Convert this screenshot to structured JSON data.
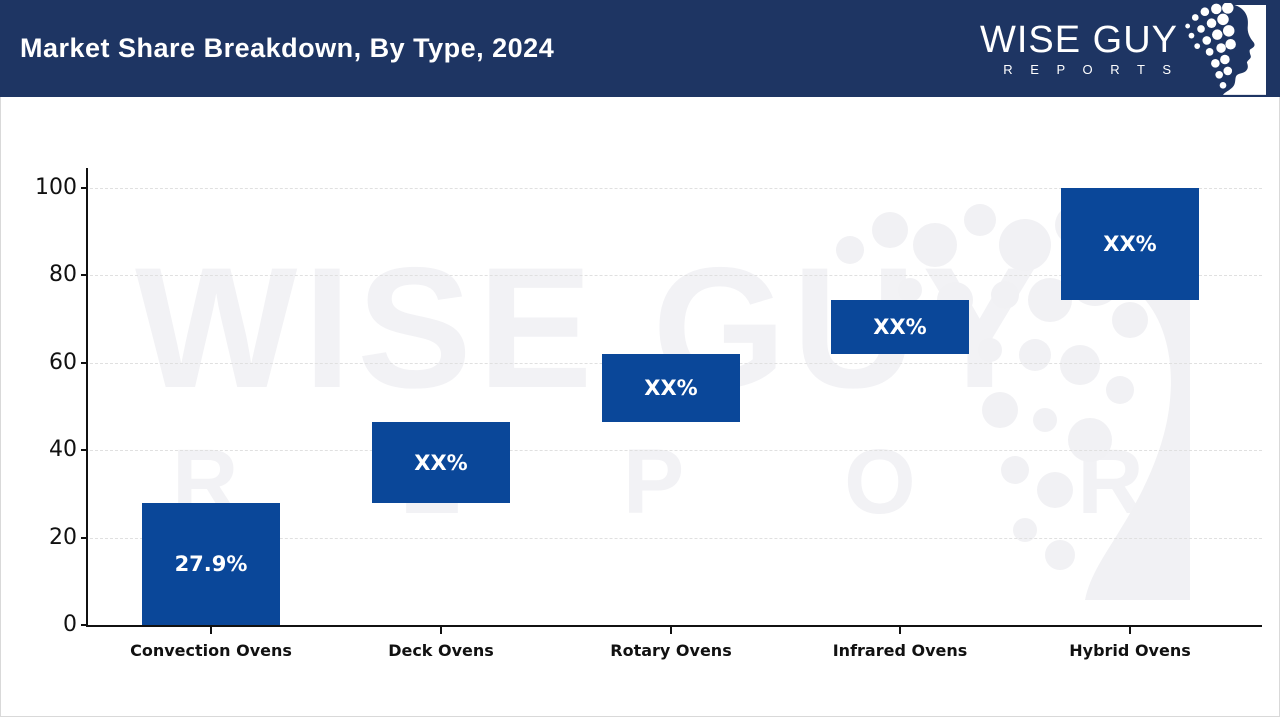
{
  "header": {
    "title": "Market Share Breakdown, By Type, 2024",
    "bg_color": "#1e3563",
    "logo": {
      "line1": "WISE GUY",
      "line2": "R E P O R T S"
    }
  },
  "watermark": {
    "line1": "WISE GUY",
    "line2": "R E P O R T S"
  },
  "chart_data": {
    "type": "bar",
    "subtype": "waterfall-floating-bars",
    "title": "Market Share Breakdown, By Type, 2024",
    "categories": [
      "Convection Ovens",
      "Deck Ovens",
      "Rotary Ovens",
      "Infrared Ovens",
      "Hybrid Ovens"
    ],
    "segments": [
      {
        "category": "Convection Ovens",
        "start": 0,
        "end": 27.9,
        "label": "27.9%"
      },
      {
        "category": "Deck Ovens",
        "start": 27.9,
        "end": 46.3,
        "label": "XX%"
      },
      {
        "category": "Rotary Ovens",
        "start": 46.3,
        "end": 61.9,
        "label": "XX%"
      },
      {
        "category": "Infrared Ovens",
        "start": 61.9,
        "end": 74.4,
        "label": "XX%"
      },
      {
        "category": "Hybrid Ovens",
        "start": 74.4,
        "end": 100,
        "label": "XX%"
      }
    ],
    "xlabel": "",
    "ylabel": "",
    "ylim": [
      0,
      100
    ],
    "yticks": [
      0,
      20,
      40,
      60,
      80,
      100
    ],
    "grid": "horizontal-dashed",
    "legend": "none",
    "bar_color": "#0a4799",
    "axis_color": "#111111",
    "grid_color": "#e0e0e0"
  }
}
